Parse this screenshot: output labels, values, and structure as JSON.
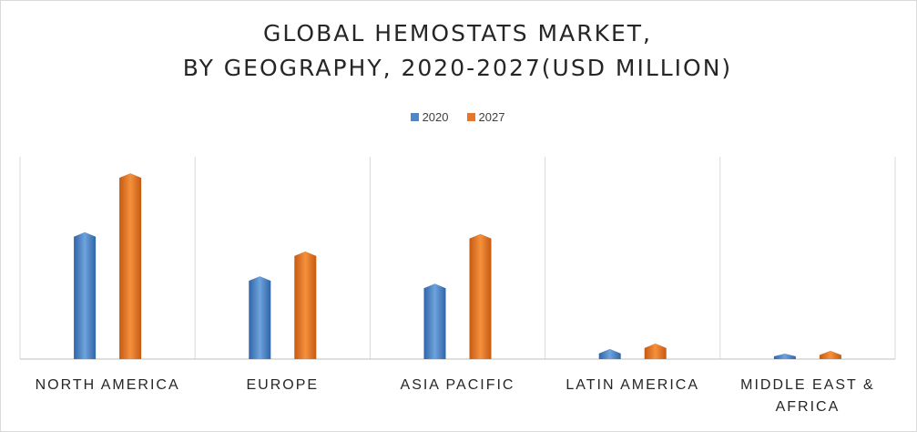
{
  "chart_data": {
    "type": "bar",
    "title_lines": [
      "GLOBAL HEMOSTATS MARKET,",
      "BY GEOGRAPHY, 2020-2027(USD MILLION)"
    ],
    "categories": [
      [
        "NORTH AMERICA"
      ],
      [
        "EUROPE"
      ],
      [
        "ASIA PACIFIC"
      ],
      [
        "LATIN AMERICA"
      ],
      [
        "MIDDLE EAST &",
        "AFRICA"
      ]
    ],
    "series": [
      {
        "name": "2020",
        "color": "#4f86c6",
        "values": [
          138,
          90,
          82,
          11,
          6
        ]
      },
      {
        "name": "2027",
        "color": "#e5762a",
        "values": [
          202,
          117,
          136,
          17,
          9
        ]
      }
    ],
    "ylim": [
      0,
      220
    ],
    "grid": "vertical category separators",
    "legend_position": "top-center",
    "bar_style": "3d-gradient"
  }
}
